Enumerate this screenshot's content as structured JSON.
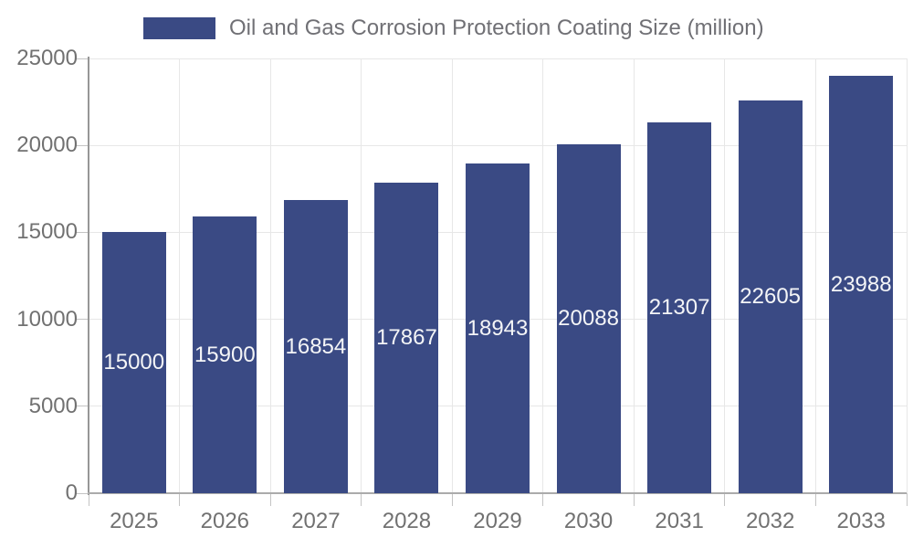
{
  "chart_data": {
    "type": "bar",
    "title": "Oil and Gas Corrosion Protection Coating Size (million)",
    "xlabel": "",
    "ylabel": "",
    "categories": [
      "2025",
      "2026",
      "2027",
      "2028",
      "2029",
      "2030",
      "2031",
      "2032",
      "2033"
    ],
    "values": [
      15000,
      15900,
      16854,
      17867,
      18943,
      20088,
      21307,
      22605,
      23988
    ],
    "ylim": [
      0,
      25000
    ],
    "yticks": [
      0,
      5000,
      10000,
      15000,
      20000,
      25000
    ],
    "grid": true,
    "legend_position": "top",
    "bar_labels_inside": true
  },
  "legend": {
    "label": "Oil and Gas Corrosion Protection Coating Size (million)"
  },
  "style": {
    "bar_color": "#3A4A84",
    "bar_label_color": "#F4F5F7",
    "grid_color": "#E7E7E7",
    "tick_color": "#C4C4C4",
    "left_spine_color": "#979797",
    "bottom_spine_color": "#ABABAB",
    "axis_label_color": "#717171",
    "title_color": "#707075",
    "background_color": "#FFFFFF"
  }
}
